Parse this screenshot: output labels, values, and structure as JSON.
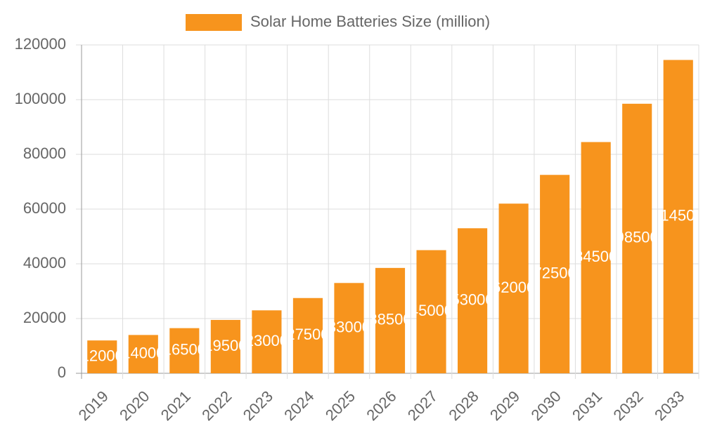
{
  "chart_data": {
    "type": "bar",
    "legend_label": "Solar Home Batteries Size (million)",
    "categories": [
      "2019",
      "2020",
      "2021",
      "2022",
      "2023",
      "2024",
      "2025",
      "2026",
      "2027",
      "2028",
      "2029",
      "2030",
      "2031",
      "2032",
      "2033"
    ],
    "values": [
      12000,
      14000,
      16500,
      19500,
      23000,
      27500,
      33000,
      38500,
      45000,
      53000,
      62000,
      72500,
      84500,
      98500,
      114500
    ],
    "color": "#f7941d",
    "ylim": [
      0,
      120000
    ],
    "yticks": [
      0,
      20000,
      40000,
      60000,
      80000,
      100000,
      120000
    ],
    "grid": true
  }
}
